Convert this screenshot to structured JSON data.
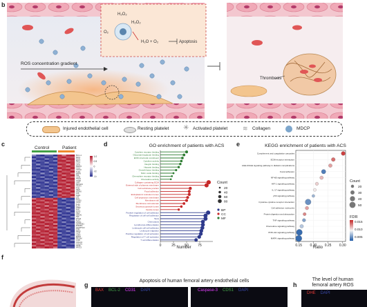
{
  "panel_letters": {
    "b": "b",
    "c": "c",
    "d": "d",
    "e": "e",
    "f": "f",
    "g": "g",
    "h": "h"
  },
  "schematic": {
    "h2o2_a": "H₂O₂",
    "h2o2_b": "H₂O₂",
    "o2": "O₂",
    "reaction": "H₂O + O₂",
    "apoptosis": "Apoptosis",
    "ros_gradient": "ROS concentration gradient",
    "thrombosis": "Thrombosis"
  },
  "legend": {
    "injured": "Injured endothelial cell",
    "resting": "Resting platelet",
    "activated": "Activated platelet",
    "collagen": "Collagen",
    "mdcp": "MDCP"
  },
  "heatmap": {
    "control": "Control",
    "patient": "Patient",
    "scale_ticks": [
      "1.0",
      "0.5",
      "0",
      "-0.5",
      "-1.0"
    ],
    "genes_top": [
      "BCL1-1",
      "BAK1",
      "NOX1",
      "BCL2",
      "CTLA",
      "GPX1",
      "PRDX3",
      "CCL5",
      "CXCL8",
      "TLR4",
      "MMP9",
      "TNF",
      "CD36",
      "ITGA2",
      "ITGB3",
      "VWF",
      "PECAM1",
      "TRAF3",
      "FGB",
      "SELP",
      "ANXA5",
      "F2R",
      "SOD1",
      "CAT"
    ],
    "genes_bottom": [
      "IL10",
      "TGFB1",
      "NOS3",
      "KLF2",
      "KLF4",
      "THBD",
      "ENG",
      "NOS2",
      "TIE1",
      "HMOX1",
      "TEK",
      "PTGIS",
      "PLAT",
      "ATOX1",
      "SERPINE1",
      "EFEMP1",
      "ADAMTS13",
      "TFPI",
      "PROC",
      "CD34",
      "CDH5",
      "EMCN",
      "PECAM",
      "F11R",
      "COL1A1",
      "COL3A1",
      "APOE",
      "APOC3"
    ]
  },
  "go_chart": {
    "title": "GO enrichment of patients with ACS",
    "xlabel": "Number",
    "xticks": [
      "0",
      "25",
      "50",
      "75"
    ],
    "count_title": "Count",
    "count_ticks": [
      "20",
      "40",
      "60",
      "80"
    ],
    "cat_legend": [
      "BP",
      "CC",
      "MF"
    ]
  },
  "kegg_chart": {
    "title": "KEGG enrichment of patients with ACS",
    "xlabel": "Ratio",
    "xticks": [
      "0.15",
      "0.20",
      "0.25",
      "0.30"
    ],
    "count_title": "Count",
    "count_ticks": [
      "20",
      "30",
      "40",
      "50"
    ],
    "fdr_title": "FDR",
    "fdr_ticks": [
      "0.015",
      "0.010",
      "0.005"
    ]
  },
  "chart_data": [
    {
      "type": "bar",
      "title": "GO enrichment of patients with ACS",
      "xlabel": "Number",
      "xlim": [
        0,
        100
      ],
      "categories": [
        "Cytokine receptor binding",
        "Glycosaminoglycan binding",
        "ECM structural constituent",
        "Cytokine activity",
        "Integrin binding",
        "Heparin binding",
        "Growth factor binding",
        "Nitric oxide binding",
        "Chemokine receptor binding",
        "Chemokine activity",
        "Collagen-containing ECM",
        "External side of plasma membrane",
        "Cell-substrate junction",
        "Focal adhesion",
        "Endoplasmic reticulum lumen",
        "Cell projection membrane",
        "Membrane raft",
        "Membrane microdomain",
        "Secretory granule lumen",
        "Vesicle lumen",
        "Positive regulation of cell adhesion",
        "Regulation of cell-cell adhesion",
        "Taxis",
        "Chemotaxis",
        "Lymphocyte differentiation",
        "Leukocyte cell-cell adhesion",
        "Leukocyte migration",
        "Positive regulation of cell activation",
        "Regulation of T cell activation",
        "T cell differentiation"
      ],
      "groups": [
        "MF",
        "MF",
        "MF",
        "MF",
        "MF",
        "MF",
        "MF",
        "MF",
        "MF",
        "MF",
        "CC",
        "CC",
        "CC",
        "CC",
        "CC",
        "CC",
        "CC",
        "CC",
        "CC",
        "CC",
        "BP",
        "BP",
        "BP",
        "BP",
        "BP",
        "BP",
        "BP",
        "BP",
        "BP",
        "BP"
      ],
      "values": [
        50,
        45,
        42,
        40,
        38,
        35,
        30,
        25,
        22,
        20,
        92,
        88,
        57,
        55,
        55,
        52,
        50,
        45,
        40,
        35,
        91,
        86,
        86,
        81,
        81,
        80,
        78,
        77,
        74,
        68
      ],
      "series_legend": [
        "BP",
        "CC",
        "MF"
      ],
      "group_colors": {
        "BP": "#2e3a8c",
        "CC": "#c62828",
        "MF": "#2e7d32"
      }
    },
    {
      "type": "scatter",
      "title": "KEGG enrichment of patients with ACS",
      "xlabel": "Ratio",
      "xlim": [
        0.14,
        0.31
      ],
      "categories": [
        "Complement and coagulation cascades",
        "ECM-receptor interaction",
        "AGE-RAGE signaling pathway in diabetic complications",
        "Focal adhesion",
        "NF-kB signaling pathway",
        "HIF-1 signaling pathway",
        "IL-17 signaling pathway",
        "p53 signaling pathway",
        "Cytokine-cytokine receptor interaction",
        "Cell adhesion molecules",
        "Protein digestion and absorption",
        "TNF signaling pathway",
        "Chemokine signaling pathway",
        "PI3K-Akt signaling pathway",
        "MAPK signaling pathway"
      ],
      "x": [
        0.302,
        0.268,
        0.258,
        0.235,
        0.228,
        0.212,
        0.205,
        0.2,
        0.182,
        0.178,
        0.17,
        0.168,
        0.16,
        0.152,
        0.15
      ],
      "count": [
        30,
        28,
        26,
        34,
        25,
        22,
        20,
        19,
        48,
        24,
        21,
        23,
        26,
        50,
        52
      ],
      "fdr": [
        0.016,
        0.014,
        0.012,
        0.002,
        0.011,
        0.01,
        0.009,
        0.005,
        0.003,
        0.012,
        0.013,
        0.004,
        0.006,
        0.001,
        0.001
      ]
    }
  ],
  "panel_g": {
    "title": "Apoptosis of human femoral artery endothelial cells",
    "stains_left": [
      {
        "t": "BAX",
        "c": "#e53935"
      },
      {
        "t": "BCL-2",
        "c": "#43a047"
      },
      {
        "t": "CD31",
        "c": "#e040fb"
      },
      {
        "t": "DAPI",
        "c": "#3949ab"
      }
    ],
    "stains_right": [
      {
        "t": "Caspase-3",
        "c": "#e040fb"
      },
      {
        "t": "CDS1",
        "c": "#43a047"
      },
      {
        "t": "DAPI",
        "c": "#3949ab"
      }
    ]
  },
  "panel_h": {
    "title1": "The level of human",
    "title2": "femoral artery ROS",
    "stains": [
      {
        "t": "DHE",
        "c": "#e53935"
      },
      {
        "t": "DAPI",
        "c": "#3949ab"
      }
    ]
  }
}
